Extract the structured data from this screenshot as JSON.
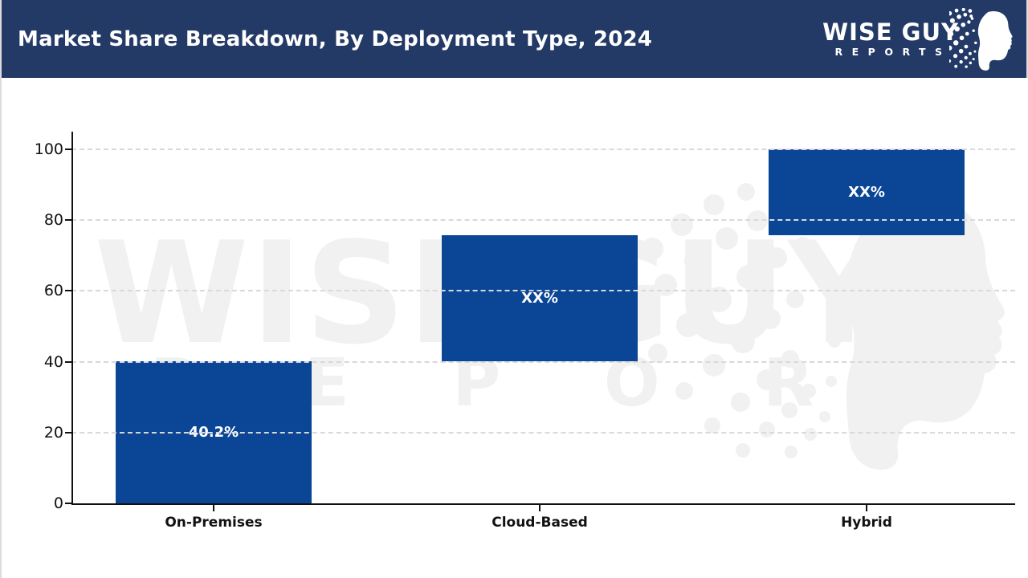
{
  "header": {
    "title": "Market Share Breakdown, By Deployment Type, 2024",
    "logo": {
      "line1": "WISE GUY",
      "line2": "REPORTS"
    }
  },
  "watermark": {
    "line1": "WISE GUY",
    "line2": "R E P O R T S"
  },
  "chart_data": {
    "type": "bar",
    "subtype": "floating-segment-waterfall",
    "title": "Market Share Breakdown, By Deployment Type, 2024",
    "categories": [
      "On-Premises",
      "Cloud-Based",
      "Hybrid"
    ],
    "segments": [
      {
        "category": "On-Premises",
        "start": 0,
        "end": 40.2,
        "label": "40.2%"
      },
      {
        "category": "Cloud-Based",
        "start": 40.2,
        "end": 75.7,
        "label": "XX%"
      },
      {
        "category": "Hybrid",
        "start": 75.7,
        "end": 100,
        "label": "XX%"
      }
    ],
    "xlabel": "",
    "ylabel": "",
    "ylim": [
      0,
      105
    ],
    "yticks": [
      0,
      20,
      40,
      60,
      80,
      100
    ],
    "grid": "dashed-horizontal",
    "legend": "none"
  },
  "colors": {
    "header_bg": "#233a66",
    "bar_fill": "#0a4596",
    "bar_value_label": "#ffffff",
    "gridline": "#d9d9d9",
    "axis": "#111111",
    "watermark": "#f1f1f1",
    "page_border": "#dcdcdc",
    "title_text": "#ffffff"
  }
}
